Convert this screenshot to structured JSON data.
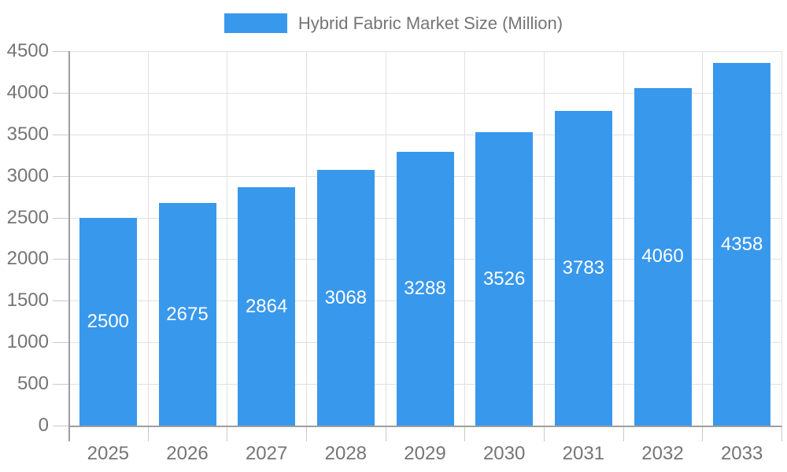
{
  "chart_data": {
    "type": "bar",
    "title": "Hybrid Fabric Market Size (Million)",
    "categories": [
      "2025",
      "2026",
      "2027",
      "2028",
      "2029",
      "2030",
      "2031",
      "2032",
      "2033"
    ],
    "series": [
      {
        "name": "Hybrid Fabric Market Size (Million)",
        "values": [
          2500,
          2675,
          2864,
          3068,
          3288,
          3526,
          3783,
          4060,
          4358
        ]
      }
    ],
    "xlabel": "",
    "ylabel": "",
    "ylim": [
      0,
      4500
    ],
    "ytick_step": 500,
    "grid": true,
    "legend_position": "top",
    "bar_value_labels_shown": true
  },
  "legend": {
    "label": "Hybrid Fabric Market Size (Million)"
  },
  "colors": {
    "bar": "#3898EC",
    "bar_label": "#FFFFFF",
    "axis_label": "#757575",
    "legend_text": "#757575",
    "gridline": "#E0E0E0",
    "axis_line": "#9E9E9E",
    "tick": "#C9C9C9",
    "background": "#FFFFFF"
  }
}
